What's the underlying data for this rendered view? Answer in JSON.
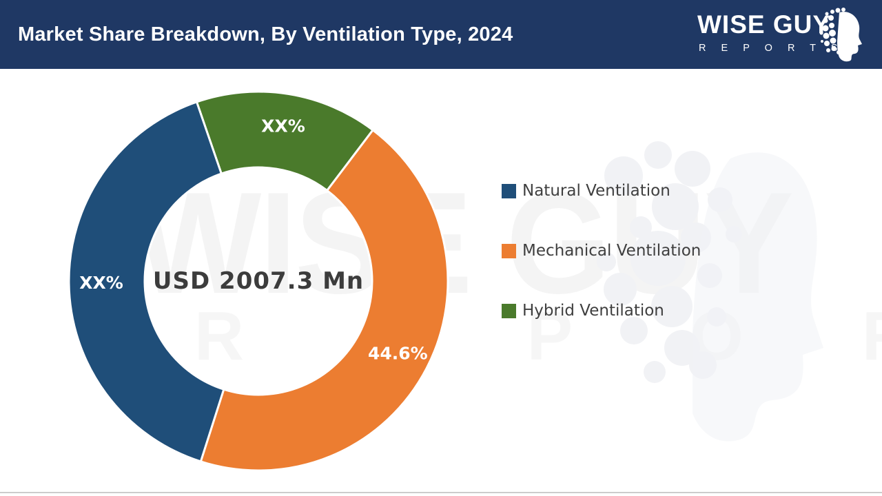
{
  "header": {
    "title": "Market Share Breakdown, By Ventilation Type, 2024",
    "bg_color": "#1f3864",
    "logo": {
      "line1": "WISE GUY",
      "line2": "R E P O R T S"
    }
  },
  "chart_data": {
    "type": "pie",
    "subtype": "donut",
    "title": "Market Share Breakdown, By Ventilation Type, 2024",
    "center_label": "USD 2007.3 Mn",
    "center_label_color": "#3c3c3c",
    "start_angle_deg": -19,
    "direction": "counterclockwise",
    "outer_radius": 275,
    "inner_radius": 165,
    "label_radius": 228,
    "legend_position": "right",
    "segments": [
      {
        "name": "Natural Ventilation",
        "label": "XX%",
        "value_pct": 39.8,
        "masked": true,
        "color": "#1f4e79"
      },
      {
        "name": "Mechanical Ventilation",
        "label": "44.6%",
        "value_pct": 44.6,
        "masked": false,
        "color": "#ec7d31"
      },
      {
        "name": "Hybrid Ventilation",
        "label": "XX%",
        "value_pct": 15.6,
        "masked": true,
        "color": "#4a7a2b"
      }
    ]
  },
  "watermark": {
    "line1": "WISE GUY",
    "line2": "R E P O R T S"
  },
  "frame": {
    "divider_color": "#cccccc"
  }
}
